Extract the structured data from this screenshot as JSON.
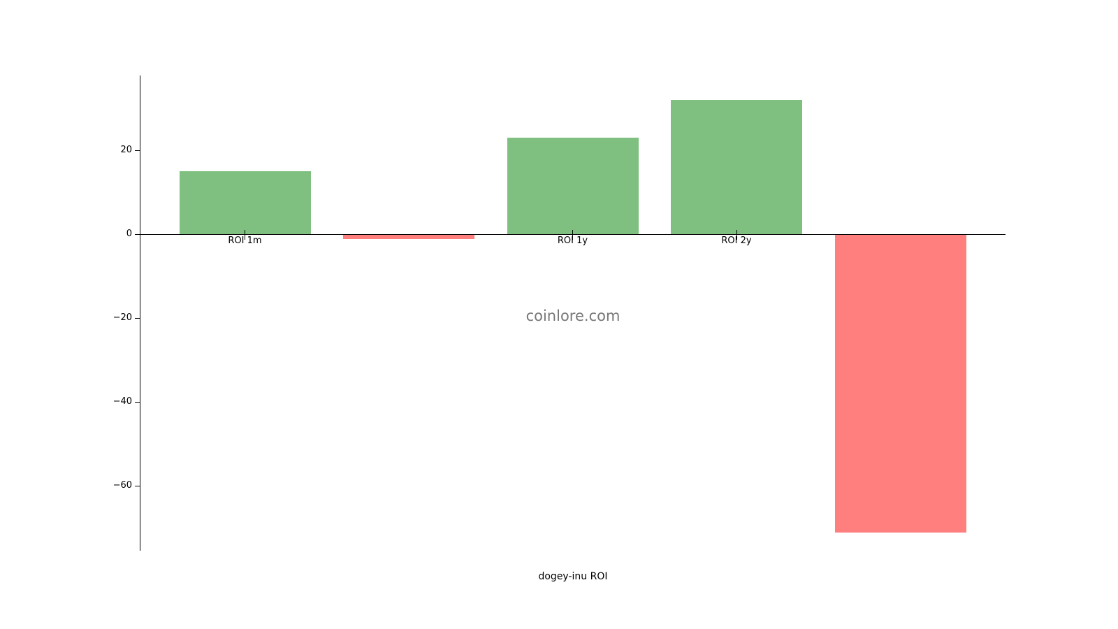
{
  "page": {
    "background_color": "#ffffff"
  },
  "watermark": {
    "text": "coinlore.com",
    "color": "#787878"
  },
  "chart_data": {
    "type": "bar",
    "title": "dogey-inu ROI",
    "categories": [
      "ROI 1m",
      "",
      "ROI 1y",
      "ROI 2y",
      ""
    ],
    "values": [
      15,
      -1,
      23,
      32,
      -71
    ],
    "y_ticks": [
      20,
      0,
      -20,
      -40,
      -60
    ],
    "ylim": [
      -76,
      37.5
    ],
    "xlabel": "",
    "ylabel": "",
    "grid": false,
    "legend": "none",
    "colors": {
      "positive_bar": "#7fbf7f",
      "negative_bar": "#ff7f7f",
      "axis": "#000000",
      "tick_label": "#000000"
    }
  }
}
